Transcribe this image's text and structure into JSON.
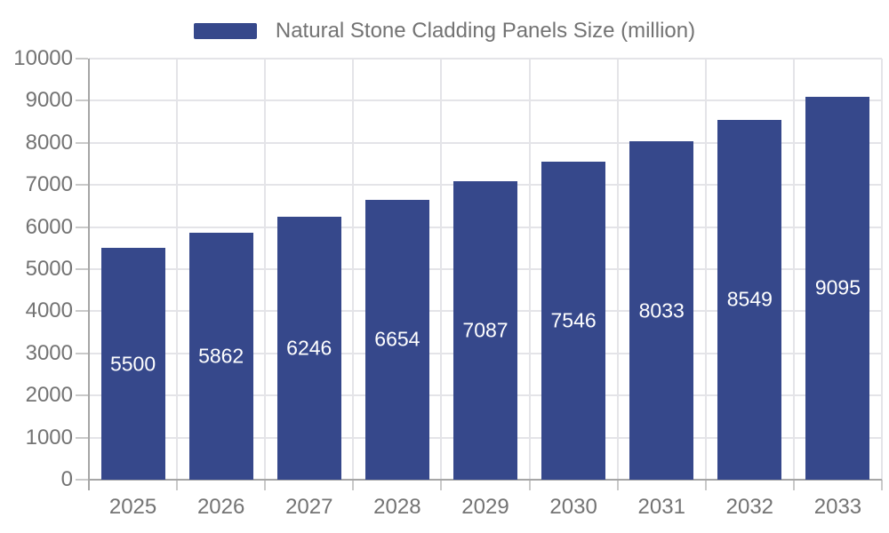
{
  "legend": {
    "label": "Natural Stone Cladding Panels Size (million)",
    "swatch_color": "#36488b"
  },
  "chart_data": {
    "type": "bar",
    "title": "Natural Stone Cladding Panels Size (million)",
    "series_name": "Natural Stone Cladding Panels Size (million)",
    "categories": [
      "2025",
      "2026",
      "2027",
      "2028",
      "2029",
      "2030",
      "2031",
      "2032",
      "2033"
    ],
    "values": [
      5500,
      5862,
      6246,
      6654,
      7087,
      7546,
      8033,
      8549,
      9095
    ],
    "xlabel": "",
    "ylabel": "",
    "ylim": [
      0,
      10000
    ],
    "ytick_interval": 1000,
    "yticks": [
      0,
      1000,
      2000,
      3000,
      4000,
      5000,
      6000,
      7000,
      8000,
      9000,
      10000
    ],
    "grid": true,
    "grid_vertical_lines": true,
    "legend_position": "top-center",
    "bar_color": "#36488b",
    "value_label_color": "#ffffff",
    "axis_text_color": "#737373",
    "gridline_color": "#e4e4e8",
    "axis_line_color": "#a6a6a6",
    "value_labels_inside_bars": true
  }
}
